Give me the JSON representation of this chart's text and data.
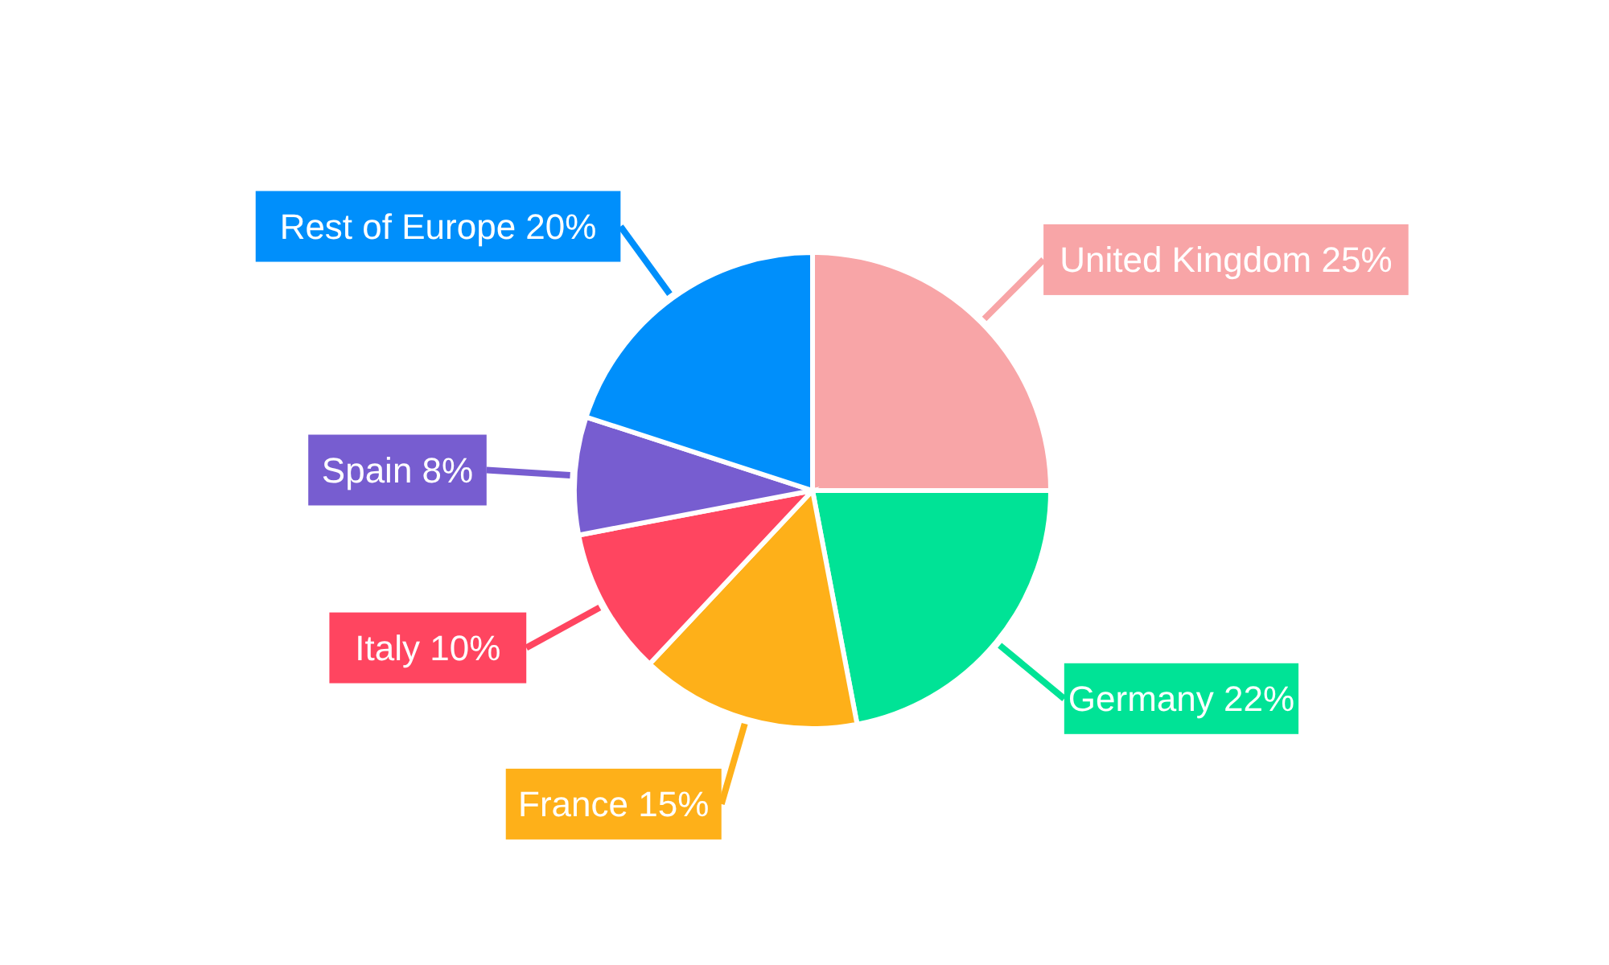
{
  "chart_data": {
    "type": "pie",
    "categories": [
      "United Kingdom",
      "Germany",
      "France",
      "Italy",
      "Spain",
      "Rest of Europe"
    ],
    "values": [
      25,
      22,
      15,
      10,
      8,
      20
    ],
    "value_labels": [
      "25%",
      "22%",
      "15%",
      "10%",
      "8%",
      "20%"
    ],
    "colors": [
      "#f8a5a7",
      "#00e396",
      "#feb019",
      "#ff4560",
      "#775dd0",
      "#008ffb"
    ],
    "legend": false
  }
}
